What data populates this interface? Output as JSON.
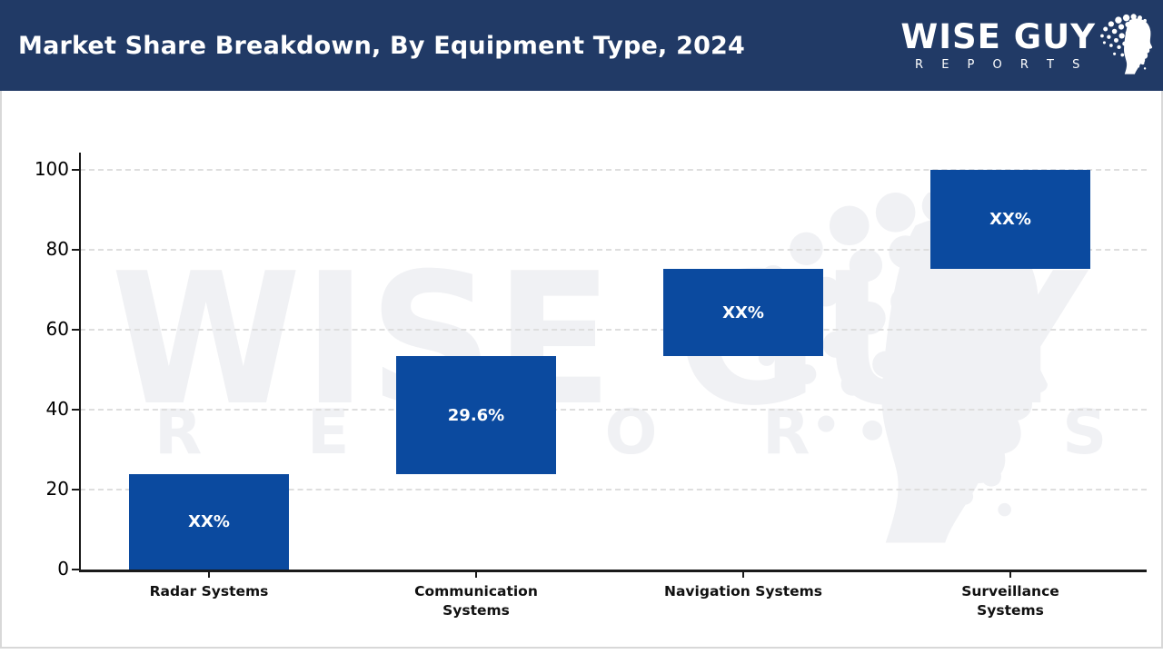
{
  "header": {
    "title": "Market Share Breakdown, By Equipment Type, 2024",
    "bg_color": "#213a66",
    "logo": {
      "name": "WISE GUY",
      "sub": "R E P O R T S"
    }
  },
  "watermark": {
    "line1": "WISE GUY",
    "line2": "R E P O R T S"
  },
  "chart_data": {
    "type": "bar",
    "subtype": "floating-segment-waterfall",
    "title": "Market Share Breakdown, By Equipment Type, 2024",
    "categories": [
      "Radar Systems",
      "Communication Systems",
      "Navigation Systems",
      "Surveillance Systems"
    ],
    "categories_display": [
      [
        "Radar Systems"
      ],
      [
        "Communication",
        "Systems"
      ],
      [
        "Navigation Systems"
      ],
      [
        "Surveillance",
        "Systems"
      ]
    ],
    "segments": [
      {
        "category": "Radar Systems",
        "start": 0,
        "end": 23.8,
        "value_label": "XX%"
      },
      {
        "category": "Communication Systems",
        "start": 23.8,
        "end": 53.4,
        "value_label": "29.6%"
      },
      {
        "category": "Navigation Systems",
        "start": 53.4,
        "end": 75.2,
        "value_label": "XX%"
      },
      {
        "category": "Surveillance Systems",
        "start": 75.2,
        "end": 100,
        "value_label": "XX%"
      }
    ],
    "ylim": [
      0,
      100
    ],
    "yticks": [
      0,
      20,
      40,
      60,
      80,
      100
    ],
    "grid": "horizontal-dashed",
    "legend": "none",
    "bar_color": "#0b4a9f",
    "bar_label_color": "#ffffff",
    "axis_color": "#1a1a1a",
    "xlabel": "",
    "ylabel": ""
  }
}
